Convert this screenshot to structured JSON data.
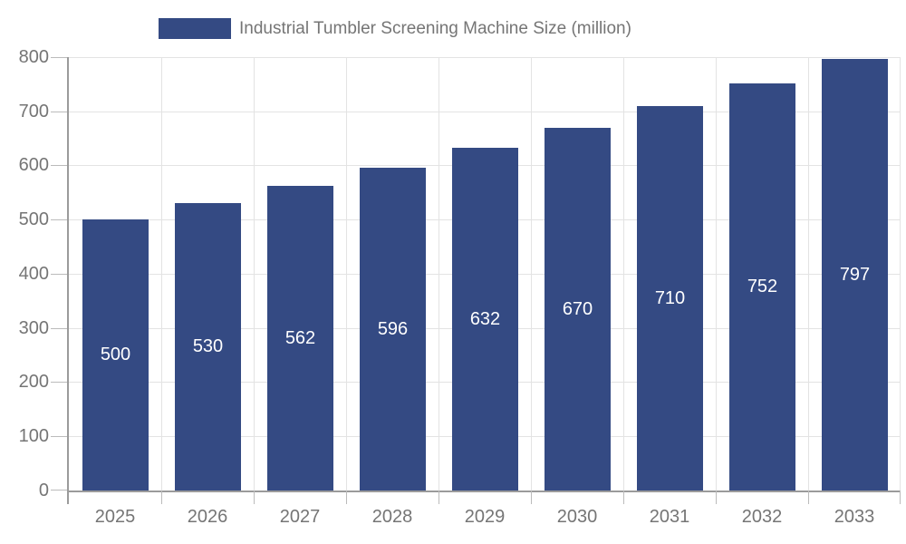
{
  "legend": {
    "label": "Industrial Tumbler Screening Machine Size (million)"
  },
  "chart_data": {
    "type": "bar",
    "title": "Industrial Tumbler Screening Machine Size (million)",
    "categories": [
      "2025",
      "2026",
      "2027",
      "2028",
      "2029",
      "2030",
      "2031",
      "2032",
      "2033"
    ],
    "values": [
      500,
      530,
      562,
      596,
      632,
      670,
      710,
      752,
      797
    ],
    "xlabel": "",
    "ylabel": "",
    "ylim": [
      0,
      800
    ],
    "yticks": [
      0,
      100,
      200,
      300,
      400,
      500,
      600,
      700,
      800
    ],
    "grid": true,
    "legend_position": "top",
    "value_labels": "inside-center"
  },
  "colors": {
    "bar": "#344A83",
    "legend_text": "#757575",
    "axis_label": "#757575",
    "axis_line": "#9B9B9B",
    "tick": "#BBBBBB",
    "gridline": "#E3E3E3",
    "value_label": "#FFFFFF",
    "background": "#FFFFFF"
  }
}
